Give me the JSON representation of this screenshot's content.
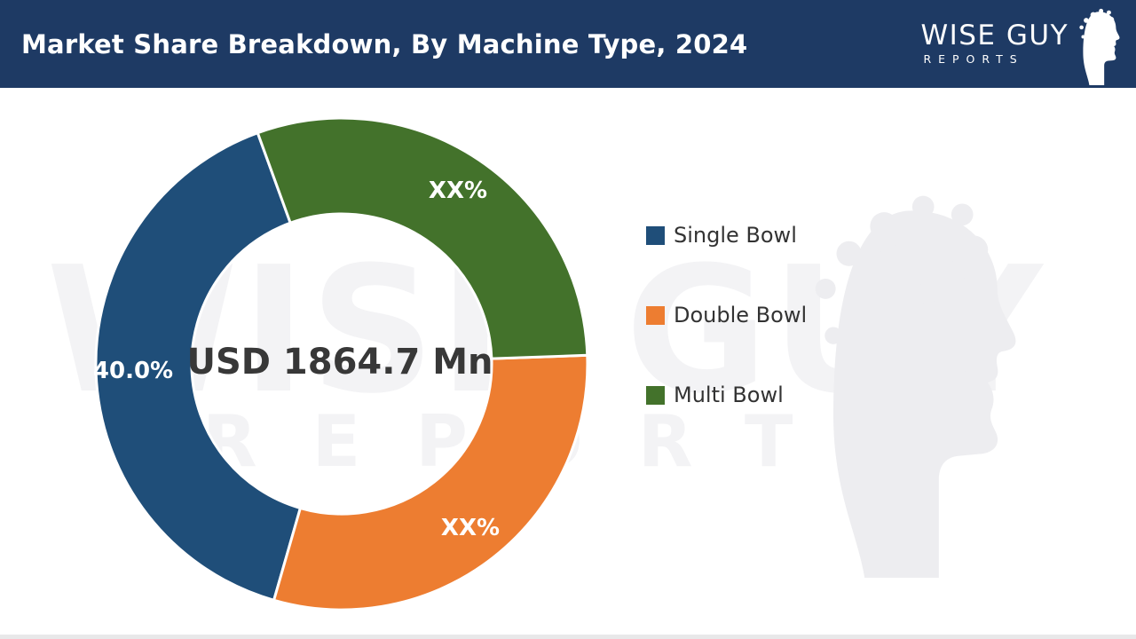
{
  "header": {
    "title": "Market Share Breakdown, By Machine Type, 2024"
  },
  "logo": {
    "line1": "WISE GUY",
    "line2": "REPORTS"
  },
  "watermark": {
    "line1": "WISE GUY",
    "line2": "REPORTS"
  },
  "colors": {
    "header_bg": "#1e3a64",
    "title_text": "#ffffff",
    "center_text": "#383838",
    "legend_text": "#333333",
    "watermark": "#f3f3f5",
    "slice_separator": "#ffffff"
  },
  "chart_data": {
    "type": "pie",
    "subtype": "donut",
    "title": "Market Share Breakdown, By Machine Type, 2024",
    "center_label": "USD 1864.7 Mn",
    "start_angle_deg": 110,
    "direction": "counterclockwise",
    "donut_hole_ratio": 0.61,
    "legend_position": "right",
    "slices": [
      {
        "name": "Single Bowl",
        "value": 40.0,
        "label": "40.0%",
        "color": "#1f4e79"
      },
      {
        "name": "Double Bowl",
        "value": 30.0,
        "label": "XX%",
        "color": "#ed7d31"
      },
      {
        "name": "Multi Bowl",
        "value": 30.0,
        "label": "XX%",
        "color": "#43722b"
      }
    ]
  }
}
